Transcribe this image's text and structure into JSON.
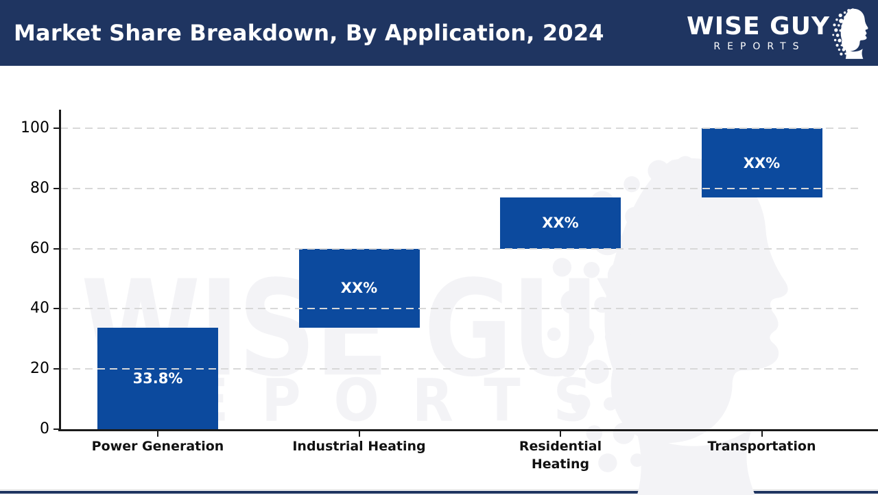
{
  "header": {
    "title": "Market Share Breakdown, By Application, 2024",
    "logo_line1": "WISE GUY",
    "logo_line2": "REPORTS",
    "bg_color": "#1f3561"
  },
  "watermark": {
    "line1": "WISE GUY",
    "line2": "REPORTS"
  },
  "chart_data": {
    "type": "bar",
    "subtype": "waterfall",
    "title": "Market Share Breakdown, By Application, 2024",
    "categories": [
      "Power Generation",
      "Industrial Heating",
      "Residential Heating",
      "Transportation"
    ],
    "categories_display": [
      "Power Generation",
      "Industrial Heating",
      "Residential\nHeating",
      "Transportation"
    ],
    "segments": [
      {
        "category": "Power Generation",
        "start": 0,
        "end": 33.8,
        "label": "33.8%"
      },
      {
        "category": "Industrial Heating",
        "start": 33.8,
        "end": 60,
        "label": "XX%"
      },
      {
        "category": "Residential Heating",
        "start": 60,
        "end": 77,
        "label": "XX%"
      },
      {
        "category": "Transportation",
        "start": 77,
        "end": 100,
        "label": "XX%"
      }
    ],
    "yticks": [
      0,
      20,
      40,
      60,
      80,
      100
    ],
    "ylim": [
      0,
      107
    ],
    "xlabel": "",
    "ylabel": "",
    "legend": "none",
    "grid": "horizontal-dashed",
    "bar_color": "#0c4a9e",
    "bar_label_color": "#ffffff",
    "gridline_color": "#d8d8d8",
    "axis_color": "#1a1a1a"
  }
}
